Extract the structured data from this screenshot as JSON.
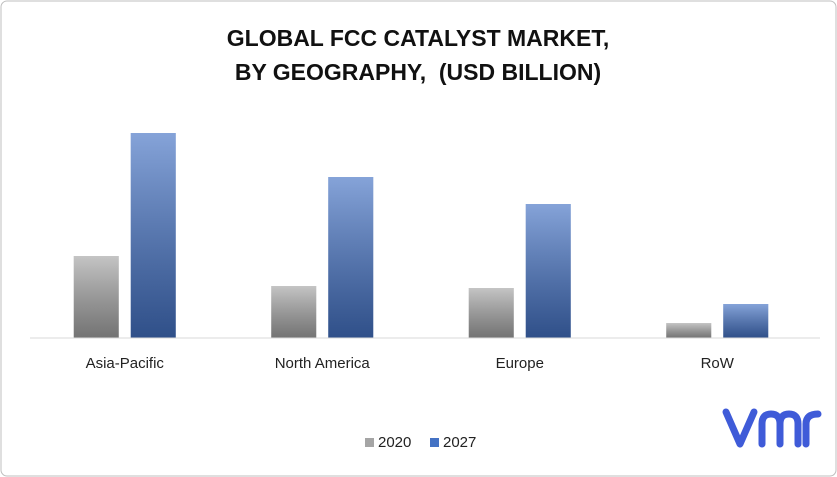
{
  "chart_data": {
    "type": "bar",
    "title": [
      "GLOBAL FCC CATALYST MARKET,",
      "BY GEOGRAPHY,  (USD BILLION)"
    ],
    "categories": [
      "Asia-Pacific",
      "North America",
      "Europe",
      "RoW"
    ],
    "series": [
      {
        "name": "2020",
        "color": "#a5a5a5",
        "values": [
          82,
          52,
          50,
          15
        ]
      },
      {
        "name": "2027",
        "color": "#4472c4",
        "values": [
          205,
          161,
          134,
          34
        ]
      }
    ]
  }
}
